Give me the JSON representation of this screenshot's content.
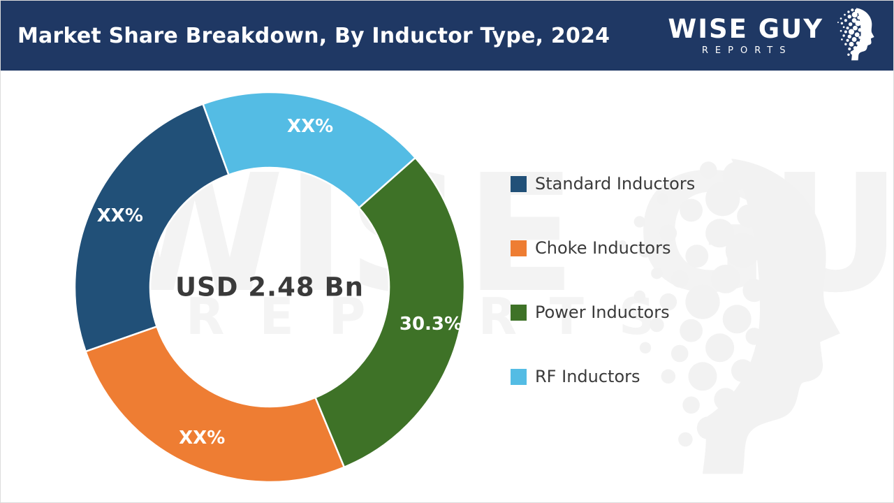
{
  "header": {
    "title": "Market Share Breakdown, By Inductor Type, 2024",
    "logo": {
      "line1": "WISE GUY",
      "line2": "REPORTS"
    }
  },
  "watermark": {
    "line1": "WISE GUY",
    "line2": "REPORTS"
  },
  "chart_data": {
    "type": "donut",
    "title": "Market Share Breakdown, By Inductor Type, 2024",
    "center_label": "USD 2.48 Bn",
    "start_angle_deg": 110,
    "direction": "counterclockwise",
    "legend_position": "right",
    "segments": [
      {
        "name": "Standard Inductors",
        "value_pct": 24.8,
        "label": "XX%",
        "color": "#215078"
      },
      {
        "name": "Choke Inductors",
        "value_pct": 25.9,
        "label": "XX%",
        "color": "#ee7d33"
      },
      {
        "name": "Power Inductors",
        "value_pct": 30.3,
        "label": "30.3%",
        "color": "#3e7227"
      },
      {
        "name": "RF Inductors",
        "value_pct": 19.0,
        "label": "XX%",
        "color": "#54bce4"
      }
    ]
  }
}
